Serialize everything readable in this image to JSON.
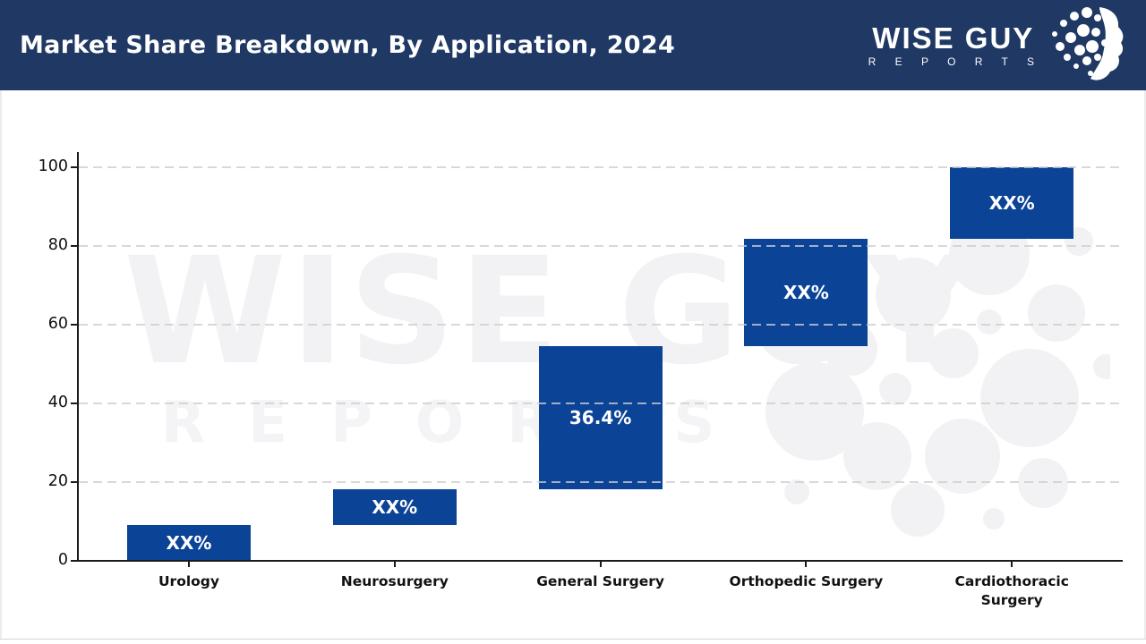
{
  "header": {
    "title": "Market Share Breakdown, By Application, 2024",
    "logo": {
      "line1": "WISE GUY",
      "line2": "R E P O R T S"
    }
  },
  "watermark": {
    "line1": "WISE GUY",
    "line2": "REPORTS"
  },
  "chart_data": {
    "type": "bar",
    "subtype": "waterfall",
    "title": "Market Share Breakdown, By Application, 2024",
    "xlabel": "",
    "ylabel": "",
    "ylim": [
      0,
      100
    ],
    "yticks": [
      0,
      20,
      40,
      60,
      80,
      100
    ],
    "grid": "horizontal-dashed-overlaid",
    "legend": "none",
    "bar_color": "#0b4397",
    "label_color": "#ffffff",
    "categories": [
      "Urology",
      "Neurosurgery",
      "General Surgery",
      "Orthopedic Surgery",
      "Cardiothoracic Surgery"
    ],
    "segments": [
      {
        "category": "Urology",
        "start": 0,
        "end": 9.1,
        "value": 9.1,
        "label": "XX%"
      },
      {
        "category": "Neurosurgery",
        "start": 9.1,
        "end": 18.2,
        "value": 9.1,
        "label": "XX%"
      },
      {
        "category": "General Surgery",
        "start": 18.2,
        "end": 54.5,
        "value": 36.4,
        "label": "36.4%"
      },
      {
        "category": "Orthopedic Surgery",
        "start": 54.5,
        "end": 81.8,
        "value": 27.3,
        "label": "XX%"
      },
      {
        "category": "Cardiothoracic Surgery",
        "start": 81.8,
        "end": 100,
        "value": 18.2,
        "label": "XX%"
      }
    ]
  },
  "colors": {
    "header_bg": "#1f3864",
    "bar": "#0b4397",
    "axis": "#1a1a1a",
    "grid": "#d9d9d9",
    "watermark": "#f2f2f4",
    "page_bg": "#ffffff"
  }
}
